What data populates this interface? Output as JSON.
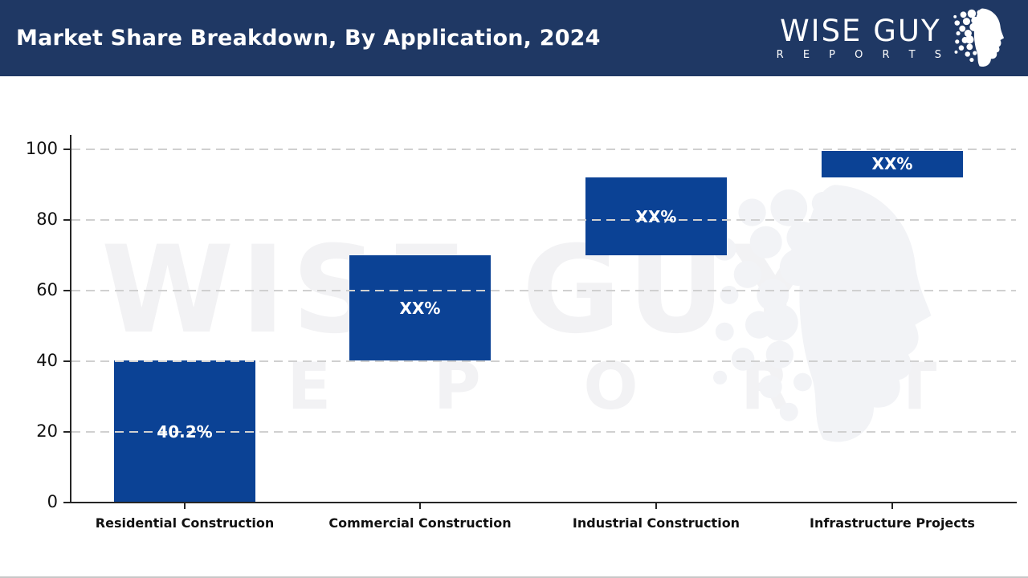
{
  "header": {
    "title": "Market Share Breakdown, By Application, 2024",
    "bg_color": "#1f3864",
    "logo": {
      "name": "WISE GUY",
      "subtitle": "R E P O R T S",
      "icon": "dotted-face-profile"
    }
  },
  "watermark": {
    "line1": "WISE GUY",
    "line2": "R E P O R T S",
    "icon": "dotted-face-profile"
  },
  "chart_data": {
    "type": "bar",
    "subtype": "waterfall",
    "title": "Market Share Breakdown, By Application, 2024",
    "categories": [
      "Residential Construction",
      "Commercial Construction",
      "Industrial Construction",
      "Infrastructure Projects"
    ],
    "segments": [
      {
        "category": "Residential Construction",
        "start": 0,
        "end": 40.2,
        "label": "40.2%"
      },
      {
        "category": "Commercial Construction",
        "start": 40.2,
        "end": 70,
        "label": "XX%"
      },
      {
        "category": "Industrial Construction",
        "start": 70,
        "end": 92,
        "label": "XX%"
      },
      {
        "category": "Infrastructure Projects",
        "start": 92,
        "end": 99.6,
        "label": "XX%"
      }
    ],
    "xlabel": "",
    "ylabel": "",
    "ylim": [
      0,
      100
    ],
    "yticks": [
      0,
      20,
      40,
      60,
      80,
      100
    ],
    "grid": "horizontal-dashed-over-bars",
    "legend": null,
    "bar_color": "#0b4295",
    "grid_color": "#d0d0d0",
    "axis_color": "#262626",
    "value_label_color": "#ffffff"
  }
}
